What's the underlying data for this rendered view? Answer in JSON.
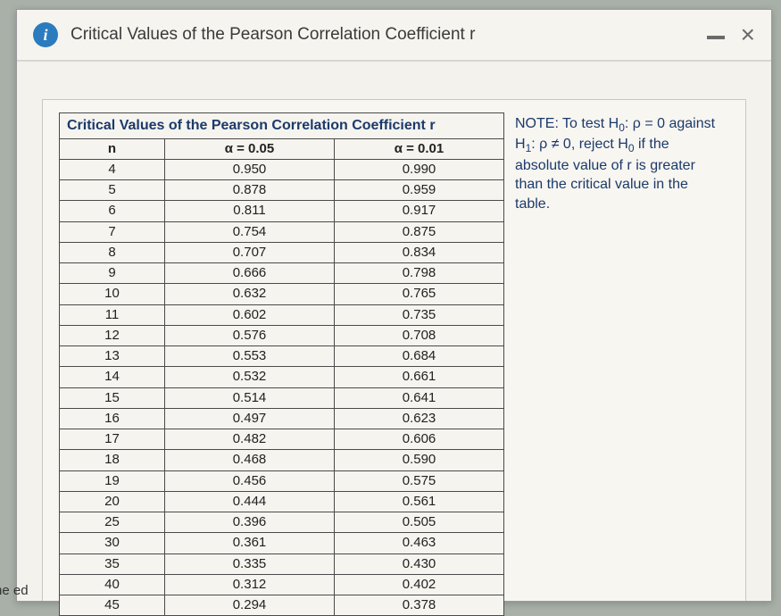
{
  "header": {
    "title": "Critical Values of the Pearson Correlation Coefficient r",
    "info_icon": "i"
  },
  "table": {
    "title": "Critical Values of the Pearson Correlation Coefficient r",
    "columns": {
      "n": "n",
      "alpha05": "α = 0.05",
      "alpha01": "α = 0.01"
    },
    "rows": [
      {
        "n": "4",
        "a": "0.950",
        "b": "0.990"
      },
      {
        "n": "5",
        "a": "0.878",
        "b": "0.959"
      },
      {
        "n": "6",
        "a": "0.811",
        "b": "0.917"
      },
      {
        "n": "7",
        "a": "0.754",
        "b": "0.875"
      },
      {
        "n": "8",
        "a": "0.707",
        "b": "0.834"
      },
      {
        "n": "9",
        "a": "0.666",
        "b": "0.798"
      },
      {
        "n": "10",
        "a": "0.632",
        "b": "0.765"
      },
      {
        "n": "11",
        "a": "0.602",
        "b": "0.735"
      },
      {
        "n": "12",
        "a": "0.576",
        "b": "0.708"
      },
      {
        "n": "13",
        "a": "0.553",
        "b": "0.684"
      },
      {
        "n": "14",
        "a": "0.532",
        "b": "0.661"
      },
      {
        "n": "15",
        "a": "0.514",
        "b": "0.641"
      },
      {
        "n": "16",
        "a": "0.497",
        "b": "0.623"
      },
      {
        "n": "17",
        "a": "0.482",
        "b": "0.606"
      },
      {
        "n": "18",
        "a": "0.468",
        "b": "0.590"
      },
      {
        "n": "19",
        "a": "0.456",
        "b": "0.575"
      },
      {
        "n": "20",
        "a": "0.444",
        "b": "0.561"
      },
      {
        "n": "25",
        "a": "0.396",
        "b": "0.505"
      },
      {
        "n": "30",
        "a": "0.361",
        "b": "0.463"
      },
      {
        "n": "35",
        "a": "0.335",
        "b": "0.430"
      },
      {
        "n": "40",
        "a": "0.312",
        "b": "0.402"
      },
      {
        "n": "45",
        "a": "0.294",
        "b": "0.378"
      }
    ]
  },
  "note": {
    "line1_pre": "NOTE: To test H",
    "line1_sub0": "0",
    "line1_post": ": ρ = 0",
    "line2_pre": "against H",
    "line2_sub1": "1",
    "line2_mid": ": ρ ≠ 0, reject H",
    "line2_sub0": "0",
    "line3": "if the absolute value of r is greater than the critical value in the table."
  },
  "truncated": "he ed",
  "style": {
    "page_bg": "#a8b0a8",
    "panel_bg": "#f4f2ed",
    "cell_bg": "#f6f4ef",
    "border_color": "#4a4a4a",
    "title_color": "#1b3a6b",
    "info_bg": "#2b7bbf",
    "font_size_cell": 15,
    "font_size_title": 19,
    "col_widths": {
      "n": 118,
      "a": 190,
      "b": 190
    }
  }
}
